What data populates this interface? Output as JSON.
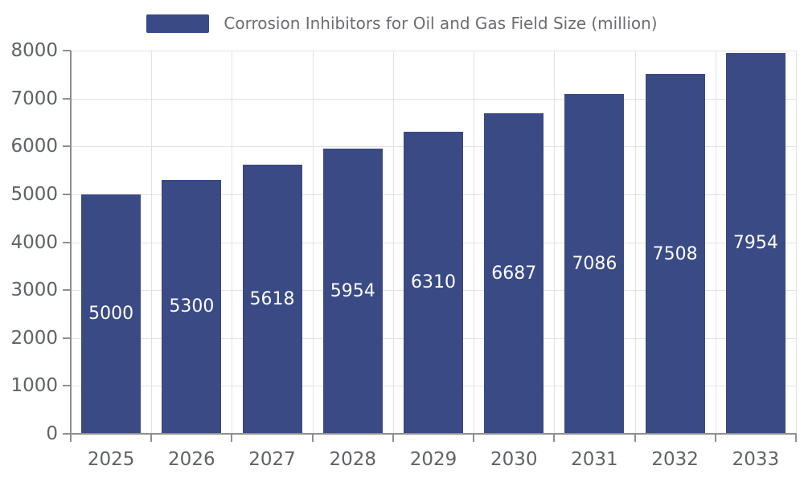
{
  "chart_data": {
    "type": "bar",
    "title": "Corrosion Inhibitors for Oil and Gas Field Size (million)",
    "categories": [
      "2025",
      "2026",
      "2027",
      "2028",
      "2029",
      "2030",
      "2031",
      "2032",
      "2033"
    ],
    "values": [
      5000,
      5300,
      5618,
      5954,
      6310,
      6687,
      7086,
      7508,
      7954
    ],
    "xlabel": "",
    "ylabel": "",
    "ylim": [
      0,
      8000
    ],
    "ytick_step": 1000,
    "ytick_labels": [
      "0",
      "1000",
      "2000",
      "3000",
      "4000",
      "5000",
      "6000",
      "7000",
      "8000"
    ],
    "grid": true,
    "legend_position": "top-center",
    "colors": {
      "bar": "#3a4a85",
      "grid": "#e2e2e2",
      "axis": "#8f8f8f",
      "tick_label": "#5f6366",
      "legend_text": "#6c6c72",
      "bar_label": "#ffffff",
      "background": "#ffffff"
    }
  }
}
